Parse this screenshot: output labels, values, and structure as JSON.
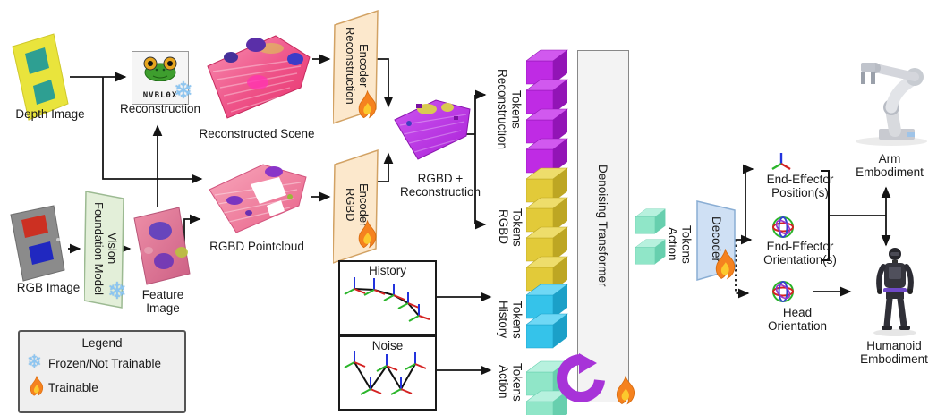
{
  "nodes": {
    "depth_image": "Depth Image",
    "rgb_image": "RGB Image",
    "vision_foundation_model": "Vision\nFoundation Model",
    "feature_image": "Feature\nImage",
    "nvblox_logo_text": "NVBL0X",
    "reconstruction": "Reconstruction",
    "reconstructed_scene": "Reconstructed Scene",
    "rgbd_pointcloud": "RGBD Pointcloud",
    "reconstruction_encoder": "Reconstruction\nEncoder",
    "rgbd_encoder": "RGBD\nEncoder",
    "fusion": "RGBD +\nReconstruction",
    "history_box": "History",
    "noise_box": "Noise",
    "denoising_transformer": "Denoising Transformer",
    "decoder": "Decoder",
    "action_tokens_right": "Action\nTokens",
    "ee_position": "End-Effector\nPosition(s)",
    "ee_orientation": "End-Effector\nOrientation(s)",
    "head_orientation": "Head\nOrientation",
    "arm_embodiment": "Arm\nEmbodiment",
    "humanoid_embodiment": "Humanoid\nEmbodiment"
  },
  "legend": {
    "title": "Legend",
    "items": [
      {
        "icon": "snowflake-icon",
        "label": "Frozen/Not Trainable"
      },
      {
        "icon": "flame-icon",
        "label": "Trainable"
      }
    ]
  },
  "icons": {
    "snowflake_glyph": "❄"
  },
  "token_stacks": [
    {
      "id": "reconstruction",
      "label": "Reconstruction\nTokens",
      "count": 4,
      "front": "#bf2be4",
      "top": "#d159ef",
      "side": "#9214b6"
    },
    {
      "id": "rgbd",
      "label": "RGBD\nTokens",
      "count": 4,
      "front": "#e2ca39",
      "top": "#eedd6b",
      "side": "#bda623"
    },
    {
      "id": "history",
      "label": "History\nTokens",
      "count": 2,
      "front": "#35c3ea",
      "top": "#6fd8f5",
      "side": "#1ba0c8"
    },
    {
      "id": "action",
      "label": "Action\nTokens",
      "count": 2,
      "front": "#90e6c8",
      "top": "#b7f1de",
      "side": "#67cfae"
    }
  ],
  "decoder_action_tokens": {
    "count": 2
  },
  "colors": {
    "flame": "#f5821f",
    "flame_inner": "#fcc92d",
    "snowflake": "#8cc6f2",
    "loop_arrow": "#a733d8",
    "encoder_fill": "#fce8cc",
    "encoder_stroke": "#d2a264",
    "decoder_fill": "#cfe0f4",
    "decoder_stroke": "#8aaed4",
    "vfm_fill": "#e3efd9",
    "vfm_stroke": "#9cba92",
    "transformer_fill": "#f3f3f3",
    "arrow": "#141414"
  }
}
